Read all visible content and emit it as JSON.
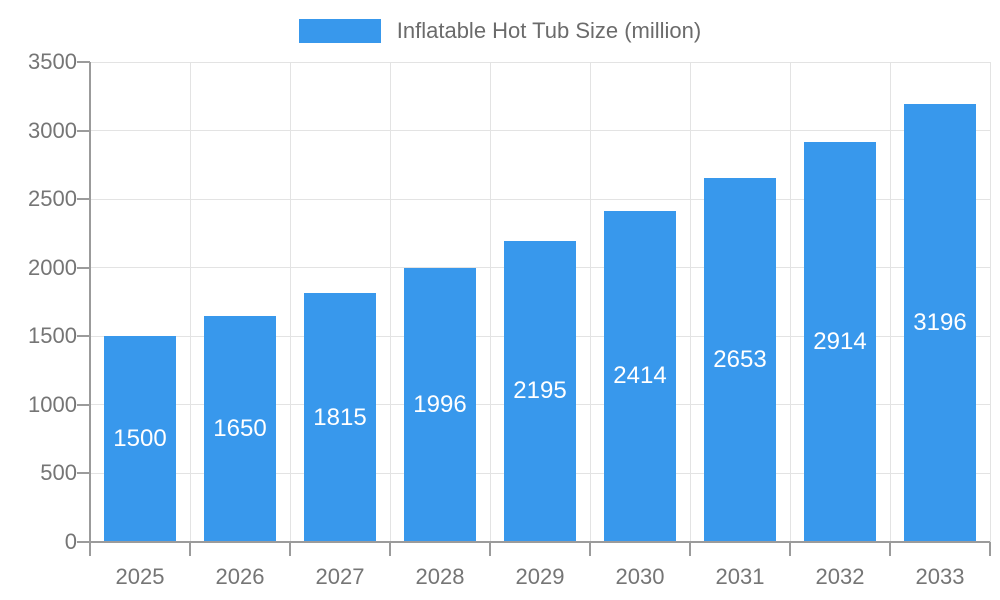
{
  "legend": {
    "label": "Inflatable Hot Tub Size (million)"
  },
  "colors": {
    "bar": "#3898EC",
    "bar_label": "#FFFFFF",
    "gridline": "#E3E3E3",
    "axis_line": "#9B9B9B",
    "tick_label": "#757575",
    "legend_text": "#6B6B6B",
    "background": "#FFFFFF"
  },
  "chart_data": {
    "type": "bar",
    "title": "Inflatable Hot Tub Size (million)",
    "series_name": "Inflatable Hot Tub Size (million)",
    "categories": [
      "2025",
      "2026",
      "2027",
      "2028",
      "2029",
      "2030",
      "2031",
      "2032",
      "2033"
    ],
    "values": [
      1500,
      1650,
      1815,
      1996,
      2195,
      2414,
      2653,
      2914,
      3196
    ],
    "value_labels": [
      "1500",
      "1650",
      "1815",
      "1996",
      "2195",
      "2414",
      "2653",
      "2914",
      "3196"
    ],
    "xlabel": "",
    "ylabel": "",
    "ylim": [
      0,
      3500
    ],
    "yticks": [
      0,
      500,
      1000,
      1500,
      2000,
      2500,
      3000,
      3500
    ],
    "ytick_labels": [
      "0",
      "500",
      "1000",
      "1500",
      "2000",
      "2500",
      "3000",
      "3500"
    ],
    "grid": "both",
    "legend_position": "top-center",
    "value_label_position": "inside-center"
  }
}
